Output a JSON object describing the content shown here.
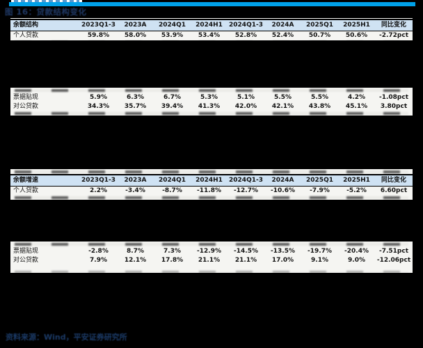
{
  "page": {
    "background": "#000000",
    "accent_bar_color": "#00a1e9",
    "table_header_bg": "#cfe2f3",
    "title_color": "#1f3864",
    "source_color": "#1b3a66"
  },
  "header": {
    "figure_title": "图 16：贷款结构变化"
  },
  "table1": {
    "columns": [
      "余额结构",
      "2023Q1-3",
      "2023A",
      "2024Q1",
      "2024H1",
      "2024Q1-3",
      "2024A",
      "2025Q1",
      "2025H1",
      "同比变化"
    ],
    "rows": [
      [
        "个人贷款",
        "59.8%",
        "58.0%",
        "53.9%",
        "53.4%",
        "52.8%",
        "52.4%",
        "50.7%",
        "50.6%",
        "-2.72pct"
      ],
      [
        "票据贴现",
        "5.9%",
        "6.3%",
        "6.7%",
        "5.3%",
        "5.1%",
        "5.5%",
        "5.5%",
        "4.2%",
        "-1.08pct"
      ],
      [
        "对公贷款",
        "34.3%",
        "35.7%",
        "39.4%",
        "41.3%",
        "42.0%",
        "42.1%",
        "43.8%",
        "45.1%",
        "3.80pct"
      ]
    ]
  },
  "table2": {
    "columns": [
      "余额增速",
      "2023Q1-3",
      "2023A",
      "2024Q1",
      "2024H1",
      "2024Q1-3",
      "2024A",
      "2025Q1",
      "2025H1",
      "同比变化"
    ],
    "rows": [
      [
        "个人贷款",
        "2.2%",
        "-3.4%",
        "-8.7%",
        "-11.8%",
        "-12.7%",
        "-10.6%",
        "-7.9%",
        "-5.2%",
        "6.60pct"
      ],
      [
        "票据贴现",
        "-2.8%",
        "8.7%",
        "7.3%",
        "-12.9%",
        "-14.5%",
        "-13.5%",
        "-19.7%",
        "-20.4%",
        "-7.51pct"
      ],
      [
        "对公贷款",
        "7.9%",
        "12.1%",
        "17.8%",
        "21.1%",
        "21.1%",
        "17.0%",
        "9.1%",
        "9.0%",
        "-12.06pct"
      ]
    ]
  },
  "footer": {
    "source_text": "资料来源：Wind，平安证券研究所"
  }
}
